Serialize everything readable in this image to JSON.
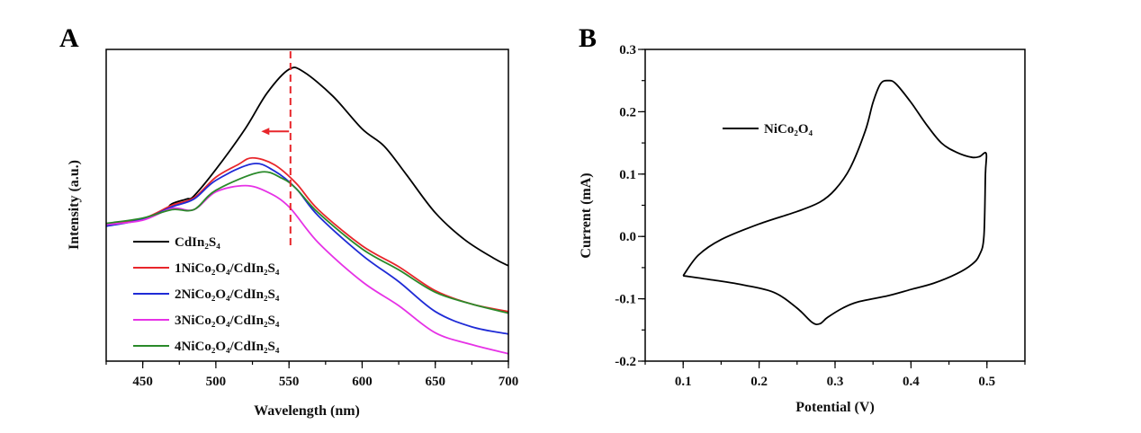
{
  "chart_data": [
    {
      "panel": "A",
      "type": "line",
      "xlabel": "Wavelength (nm)",
      "ylabel": "Intensity (a.u.)",
      "xlim": [
        425,
        700
      ],
      "ylim": [
        0,
        100
      ],
      "xticks": [
        450,
        500,
        550,
        600,
        650,
        700
      ],
      "yticks": [],
      "grid": false,
      "legend": "bottom-left",
      "annotations": {
        "dashed_line_x": 551,
        "dashed_line_color": "#e8262b",
        "arrow": {
          "from": 550,
          "to": 531,
          "y": 73.7,
          "color": "#e8262b"
        }
      },
      "series": [
        {
          "name": "CdIn₂S₄",
          "color": "#000000",
          "x": [
            425,
            450,
            465,
            470,
            480,
            485,
            500,
            520,
            535,
            550,
            560,
            580,
            600,
            615,
            630,
            650,
            670,
            690,
            700
          ],
          "y": [
            44,
            45.7,
            48.5,
            50.5,
            52,
            53,
            61.5,
            74.5,
            86,
            93.6,
            92.8,
            85,
            74.5,
            69,
            60,
            47.6,
            39,
            33,
            30.6
          ]
        },
        {
          "name": "1NiCo₂O₄/CdIn₂S₄",
          "color": "#e8262b",
          "x": [
            425,
            450,
            470,
            485,
            500,
            515,
            525,
            540,
            555,
            570,
            600,
            625,
            650,
            675,
            700
          ],
          "y": [
            43.8,
            45.7,
            50,
            52.4,
            59,
            63,
            65.2,
            63,
            57,
            48.6,
            37,
            30.3,
            22.6,
            18.3,
            15.9
          ]
        },
        {
          "name": "2NiCo₂O₄/CdIn₂S₄",
          "color": "#1f2bd6",
          "x": [
            425,
            450,
            470,
            485,
            500,
            525,
            540,
            555,
            570,
            600,
            625,
            650,
            675,
            700
          ],
          "y": [
            43.3,
            45.5,
            49.5,
            52,
            58,
            63.3,
            61,
            55.3,
            46.6,
            34,
            25.5,
            15.9,
            11,
            8.7
          ]
        },
        {
          "name": "3NiCo₂O₄/CdIn₂S₄",
          "color": "#e632e6",
          "x": [
            425,
            450,
            470,
            485,
            500,
            520,
            535,
            550,
            570,
            600,
            625,
            650,
            675,
            700
          ],
          "y": [
            43.8,
            45.2,
            49,
            48.6,
            54.3,
            56.3,
            54.3,
            49.5,
            38,
            25.5,
            17.8,
            9.1,
            5.3,
            2.4
          ]
        },
        {
          "name": "4NiCo₂O₄/CdIn₂S₄",
          "color": "#2a8a2a",
          "x": [
            425,
            450,
            470,
            485,
            500,
            530,
            545,
            555,
            570,
            600,
            625,
            650,
            675,
            700
          ],
          "y": [
            44.2,
            45.9,
            48.6,
            48.6,
            54.8,
            60.6,
            58.7,
            55.3,
            47.6,
            36,
            29.3,
            22.1,
            18.3,
            15.4
          ]
        }
      ]
    },
    {
      "panel": "B",
      "type": "line",
      "xlabel": "Potential (V)",
      "ylabel": "Current (mA)",
      "xlim": [
        0.05,
        0.55
      ],
      "ylim": [
        -0.2,
        0.3
      ],
      "xticks": [
        "0.1",
        "0.2",
        "0.3",
        "0.4",
        "0.5"
      ],
      "yticks": [
        "-0.2",
        "-0.1",
        "0.0",
        "0.1",
        "0.2",
        "0.3"
      ],
      "grid": false,
      "legend": "top-left",
      "series": [
        {
          "name": "NiCo₂O₄",
          "color": "#000000",
          "x": [
            0.1,
            0.12,
            0.15,
            0.2,
            0.25,
            0.28,
            0.3,
            0.32,
            0.34,
            0.35,
            0.36,
            0.37,
            0.38,
            0.4,
            0.42,
            0.44,
            0.46,
            0.48,
            0.49,
            0.499,
            0.498,
            0.496,
            0.49,
            0.48,
            0.46,
            0.43,
            0.4,
            0.37,
            0.33,
            0.31,
            0.29,
            0.28,
            0.27,
            0.25,
            0.22,
            0.18,
            0.14,
            0.1
          ],
          "y": [
            -0.063,
            -0.03,
            -0.005,
            0.02,
            0.04,
            0.055,
            0.075,
            0.11,
            0.17,
            0.215,
            0.245,
            0.25,
            0.245,
            0.215,
            0.18,
            0.15,
            0.135,
            0.127,
            0.128,
            0.133,
            0.1,
            0.0,
            -0.03,
            -0.045,
            -0.06,
            -0.075,
            -0.085,
            -0.095,
            -0.105,
            -0.115,
            -0.13,
            -0.14,
            -0.138,
            -0.115,
            -0.09,
            -0.078,
            -0.07,
            -0.063
          ]
        }
      ]
    }
  ]
}
